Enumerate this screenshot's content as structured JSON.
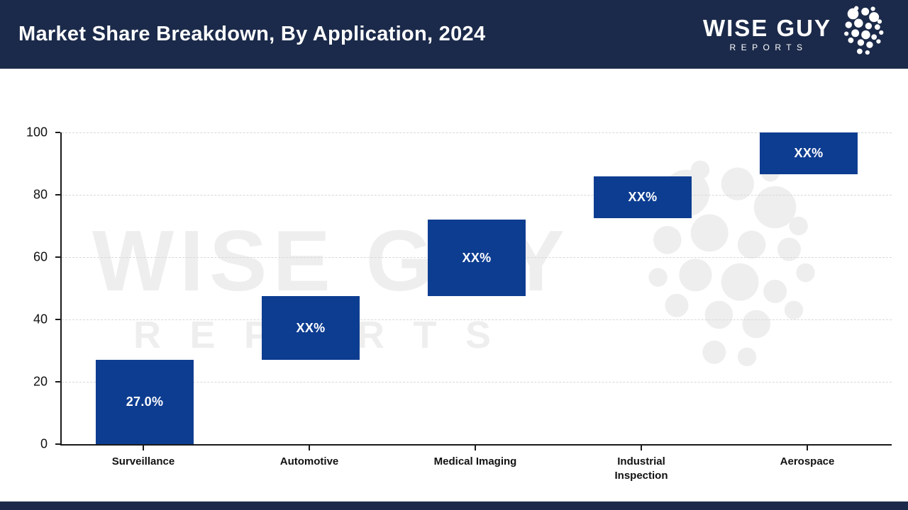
{
  "header": {
    "title": "Market Share Breakdown, By Application, 2024",
    "logo": {
      "line1": "WISE GUY",
      "line2": "REPORTS"
    }
  },
  "watermark": {
    "line1": "WISE GUY",
    "line2": "REPORTS"
  },
  "colors": {
    "header_bg": "#1b2a4a",
    "footer_bg": "#1b2a4a",
    "bar": "#0d3d91",
    "bar_label_text": "#ffffff",
    "grid": "#d8d8d8",
    "axis": "#1a1a1a",
    "watermark": "#eeeeee"
  },
  "chart_data": {
    "type": "waterfall",
    "title": "Market Share Breakdown, By Application, 2024",
    "categories": [
      "Surveillance",
      "Automotive",
      "Medical Imaging",
      "Industrial Inspection",
      "Aerospace"
    ],
    "segments": [
      {
        "category": "Surveillance",
        "start": 0,
        "end": 27,
        "value": 27.0,
        "label": "27.0%"
      },
      {
        "category": "Automotive",
        "start": 27,
        "end": 47.5,
        "value": 20.5,
        "label": "XX%"
      },
      {
        "category": "Medical Imaging",
        "start": 47.5,
        "end": 72,
        "value": 24.5,
        "label": "XX%"
      },
      {
        "category": "Industrial Inspection",
        "start": 72.5,
        "end": 86,
        "value": 13.5,
        "label": "XX%"
      },
      {
        "category": "Aerospace",
        "start": 86.5,
        "end": 100,
        "value": 13.5,
        "label": "XX%"
      }
    ],
    "ylim": [
      0,
      100
    ],
    "yticks": [
      0,
      20,
      40,
      60,
      80,
      100
    ],
    "grid": "horizontal-dashed",
    "legend": "none"
  }
}
